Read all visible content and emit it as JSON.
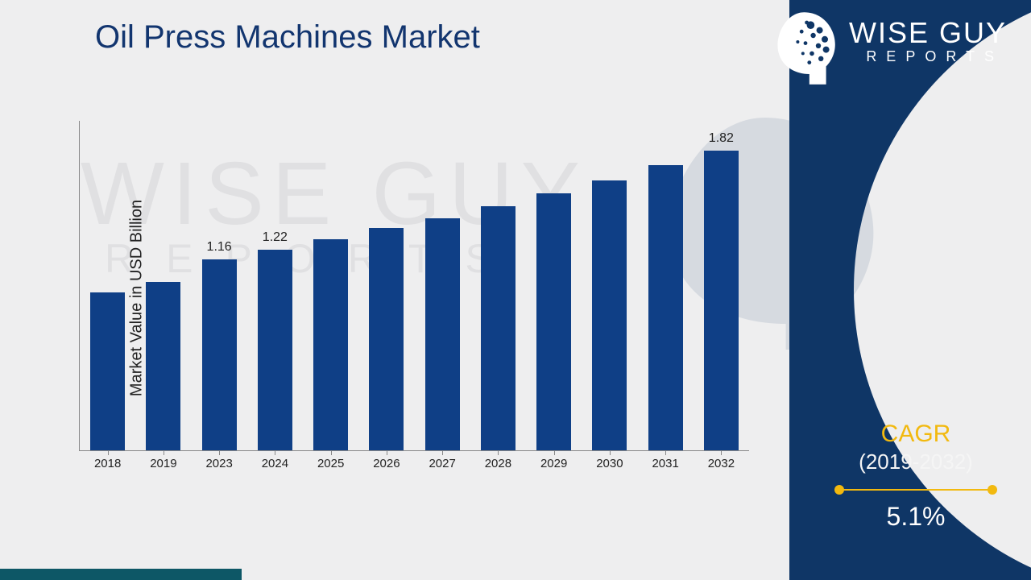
{
  "title": "Oil Press Machines Market",
  "logo": {
    "line1": "WISE GUY",
    "line2": "REPORTS"
  },
  "watermark": {
    "line1": "WISE GUY",
    "line2": "REPORTS"
  },
  "cagr": {
    "label": "CAGR",
    "range": "(2019-2032)",
    "value": "5.1%"
  },
  "colors": {
    "page_bg": "#eeeeef",
    "band_bg": "#0f3666",
    "title_color": "#12356f",
    "bar_color": "#0f3f86",
    "axis_color": "#888888",
    "cagr_accent": "#f2b90f",
    "cagr_value_color": "#ffffff",
    "cagr_range_color": "#f5f5f5",
    "strip_color": "#0d5766",
    "text_color": "#222222",
    "logo_color": "#ffffff"
  },
  "chart": {
    "type": "bar",
    "ylabel": "Market Value in USD Billion",
    "ylim": [
      0,
      2.0
    ],
    "bar_width": 0.62,
    "bar_color": "#0f3f86",
    "categories": [
      "2018",
      "2019",
      "2023",
      "2024",
      "2025",
      "2026",
      "2027",
      "2028",
      "2029",
      "2030",
      "2031",
      "2032"
    ],
    "values": [
      0.96,
      1.02,
      1.16,
      1.22,
      1.28,
      1.35,
      1.41,
      1.48,
      1.56,
      1.64,
      1.73,
      1.82
    ],
    "value_labels": {
      "2": "1.16",
      "3": "1.22",
      "11": "1.82"
    },
    "label_fontsize": 15,
    "ylabel_fontsize": 20,
    "title_fontsize": 40
  }
}
